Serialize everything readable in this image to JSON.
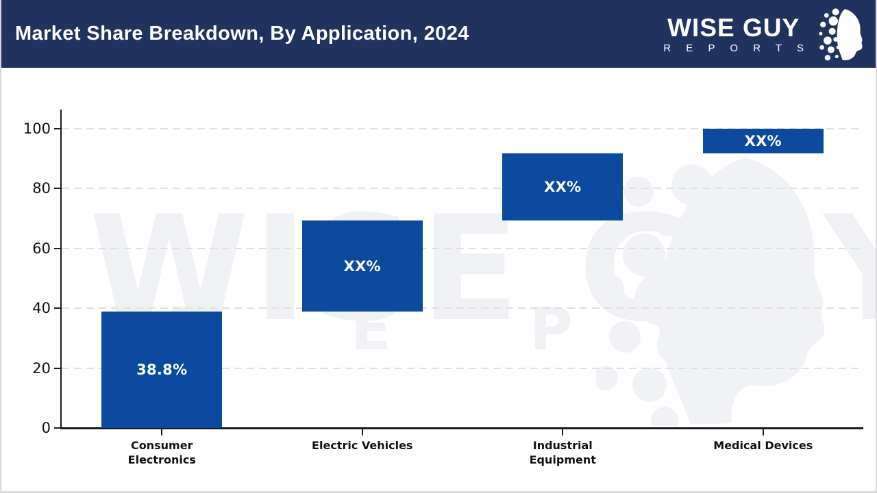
{
  "header": {
    "logo": {
      "line1": "WISE GUY",
      "line2": "R E P O R T S"
    }
  },
  "watermark": {
    "line1": "WISE GUY",
    "line2": "REPORTS"
  },
  "chart_data": {
    "type": "bar",
    "variant": "stacked-waterfall",
    "title": "Market Share Breakdown, By Application, 2024",
    "categories": [
      "Consumer Electronics",
      "Electric Vehicles",
      "Industrial Equipment",
      "Medical Devices"
    ],
    "category_lines": [
      [
        "Consumer",
        "Electronics"
      ],
      [
        "Electric Vehicles"
      ],
      [
        "Industrial",
        "Equipment"
      ],
      [
        "Medical Devices"
      ]
    ],
    "segments": [
      {
        "category": "Consumer Electronics",
        "start": 0,
        "end": 38.8,
        "value": 38.8,
        "label": "38.8%"
      },
      {
        "category": "Electric Vehicles",
        "start": 38.8,
        "end": 69.3,
        "value": 30.5,
        "label": "XX%"
      },
      {
        "category": "Industrial Equipment",
        "start": 69.3,
        "end": 91.7,
        "value": 22.4,
        "label": "XX%"
      },
      {
        "category": "Medical Devices",
        "start": 91.7,
        "end": 100,
        "value": 8.3,
        "label": "XX%"
      }
    ],
    "ylim": [
      0,
      100
    ],
    "yticks": [
      0,
      20,
      40,
      60,
      80,
      100
    ],
    "grid": {
      "horizontal": true,
      "style": "dashed"
    },
    "legend": "none",
    "unit": "%",
    "colors": {
      "bar": "#0b4a9f",
      "bar_label": "#ffffff",
      "header_bg": "#20335f",
      "axis": "#1a1a1a",
      "grid": "#e0e0e0",
      "watermark": "#f0f1f4"
    }
  }
}
